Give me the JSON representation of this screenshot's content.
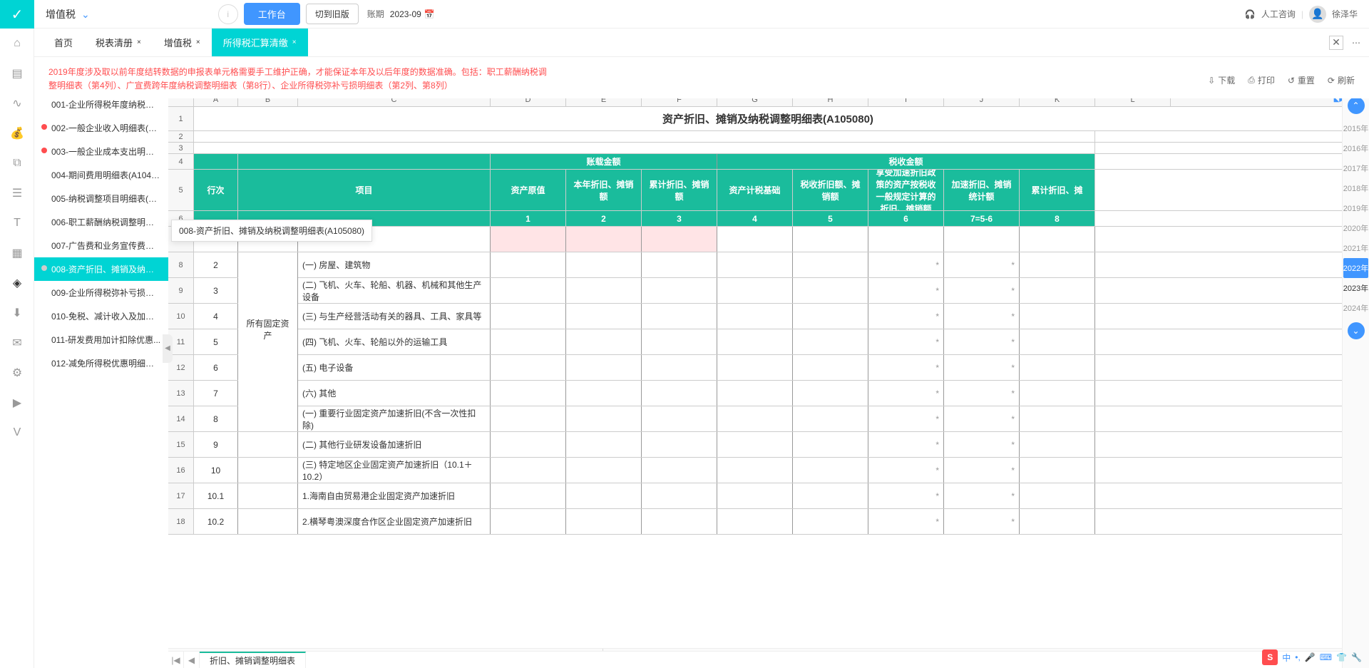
{
  "header": {
    "selector": "增值税",
    "workbench": "工作台",
    "switch_old": "切到旧版",
    "period_label": "账期",
    "period_value": "2023-09",
    "consult": "人工咨询",
    "username": "徐泽华"
  },
  "tabs": [
    {
      "label": "首页",
      "closable": false,
      "active": false
    },
    {
      "label": "税表清册",
      "closable": true,
      "active": false
    },
    {
      "label": "增值税",
      "closable": true,
      "active": false
    },
    {
      "label": "所得税汇算清缴",
      "closable": true,
      "active": true
    }
  ],
  "tab_close_icon": "✕",
  "tab_more_icon": "⋯",
  "notice": "2019年度涉及取以前年度结转数据的申报表单元格需要手工维护正确，才能保证本年及以后年度的数据准确。包括：职工薪酬纳税调整明细表（第4列）、广宣费跨年度纳税调整明细表（第8行）、企业所得税弥补亏损明细表（第2列、第8列）",
  "toolbar": {
    "download": "下载",
    "print": "打印",
    "reset": "重置",
    "refresh": "刷新"
  },
  "forms": [
    {
      "label": "001-企业所得税年度纳税申...",
      "status": ""
    },
    {
      "label": "002-一般企业收入明细表(A1...",
      "status": "red"
    },
    {
      "label": "003-一般企业成本支出明细...",
      "status": "red"
    },
    {
      "label": "004-期间费用明细表(A1040...",
      "status": ""
    },
    {
      "label": "005-纳税调整项目明细表(A1...",
      "status": ""
    },
    {
      "label": "006-职工薪酬纳税调整明细...",
      "status": ""
    },
    {
      "label": "007-广告费和业务宣传费跨...",
      "status": ""
    },
    {
      "label": "008-资产折旧、摊销及纳税...",
      "status": "grey",
      "active": true
    },
    {
      "label": "009-企业所得税弥补亏损明...",
      "status": ""
    },
    {
      "label": "010-免税、减计收入及加计...",
      "status": ""
    },
    {
      "label": "011-研发费用加计扣除优惠...",
      "status": ""
    },
    {
      "label": "012-减免所得税优惠明细表(...",
      "status": ""
    }
  ],
  "tooltip": "008-资产折旧、摊销及纳税调整明细表(A105080)",
  "columns": [
    "A",
    "B",
    "C",
    "D",
    "E",
    "F",
    "G",
    "H",
    "I",
    "J",
    "K",
    "L"
  ],
  "grid": {
    "title": "资产折旧、摊销及纳税调整明细表(A105080)",
    "h_rowlabel": "行次",
    "h_item": "项目",
    "h_group1": "账载金额",
    "h_group2": "税收金额",
    "h_sub": [
      "资产原值",
      "本年折旧、摊销额",
      "累计折旧、摊销额",
      "资产计税基础",
      "税收折旧额、摊销额",
      "享受加速折旧政策的资产按税收一般规定计算的折旧、摊销额",
      "加速折旧、摊销统计额",
      "累计折旧、摊"
    ],
    "h_nums": [
      "1",
      "2",
      "3",
      "4",
      "5",
      "6",
      "7=5-6",
      "8"
    ],
    "rows": [
      {
        "n": "7",
        "r": "",
        "item": "",
        "pink": true
      },
      {
        "n": "8",
        "r": "2",
        "item": "(一) 房屋、建筑物"
      },
      {
        "n": "9",
        "r": "3",
        "item": "(二) 飞机、火车、轮船、机器、机械和其他生产设备"
      },
      {
        "n": "10",
        "r": "4",
        "item": "(三) 与生产经营活动有关的器具、工具、家具等"
      },
      {
        "n": "11",
        "r": "5",
        "item": "(四) 飞机、火车、轮船以外的运输工具"
      },
      {
        "n": "12",
        "r": "6",
        "item": "(五) 电子设备"
      },
      {
        "n": "13",
        "r": "7",
        "item": "(六) 其他"
      },
      {
        "n": "14",
        "r": "8",
        "item": "(一) 重要行业固定资产加速折旧(不含一次性扣除)"
      },
      {
        "n": "15",
        "r": "9",
        "item": "(二) 其他行业研发设备加速折旧"
      },
      {
        "n": "16",
        "r": "10",
        "item": "(三) 特定地区企业固定资产加速折旧（10.1＋10.2）"
      },
      {
        "n": "17",
        "r": "10.1",
        "item": "1.海南自由贸易港企业固定资产加速折旧"
      },
      {
        "n": "18",
        "r": "10.2",
        "item": "2.横琴粤澳深度合作区企业固定资产加速折旧"
      }
    ],
    "merge_label": "所有固定资产"
  },
  "sheet_tab": "折旧、摊销调整明细表",
  "years": [
    "2015年",
    "2016年",
    "2017年",
    "2018年",
    "2019年",
    "2020年",
    "2021年",
    "2022年",
    "2023年",
    "2024年"
  ],
  "year_active": "2022年",
  "year_bold": "2023年",
  "ime": {
    "logo": "S",
    "label": "中"
  }
}
